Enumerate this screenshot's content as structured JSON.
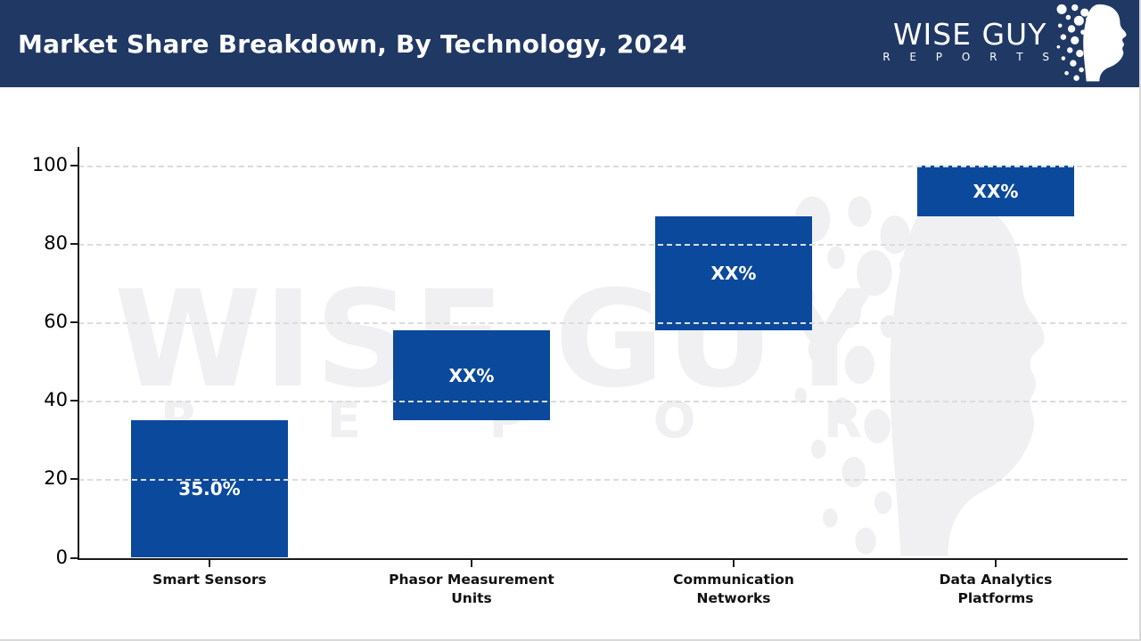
{
  "header": {
    "title": "Market Share Breakdown, By Technology, 2024",
    "logo": {
      "name": "WISE GUY",
      "sub": "R E P O R T S"
    }
  },
  "watermark": {
    "name": "WISE GUY",
    "sub": "R E P O R T S"
  },
  "colors": {
    "header_bg": "#203864",
    "bar": "#0b499c",
    "grid": "#dcdcdc",
    "axis": "#1a1a1a",
    "watermark": "#f0f0f2",
    "page_bg": "#ffffff"
  },
  "chart_data": {
    "type": "bar",
    "subtype": "waterfall-breakdown",
    "title": "Market Share Breakdown, By Technology, 2024",
    "categories": [
      "Smart Sensors",
      "Phasor Measurement\nUnits",
      "Communication\nNetworks",
      "Data Analytics\nPlatforms"
    ],
    "values": [
      35,
      23,
      29,
      13
    ],
    "segments": [
      {
        "category": "Smart Sensors",
        "start": 0,
        "end": 35,
        "label": "35.0%"
      },
      {
        "category": "Phasor Measurement Units",
        "start": 35,
        "end": 58,
        "label": "XX%"
      },
      {
        "category": "Communication Networks",
        "start": 58,
        "end": 87,
        "label": "XX%"
      },
      {
        "category": "Data Analytics Platforms",
        "start": 87,
        "end": 100,
        "label": "XX%"
      }
    ],
    "xlabel": "",
    "ylabel": "",
    "ylim": [
      0,
      100
    ],
    "yticks": [
      0,
      20,
      40,
      60,
      80,
      100
    ],
    "grid": "horizontal-dashed",
    "legend": null,
    "bar_color": "#0b499c",
    "bar_label_color": "#ffffff"
  }
}
